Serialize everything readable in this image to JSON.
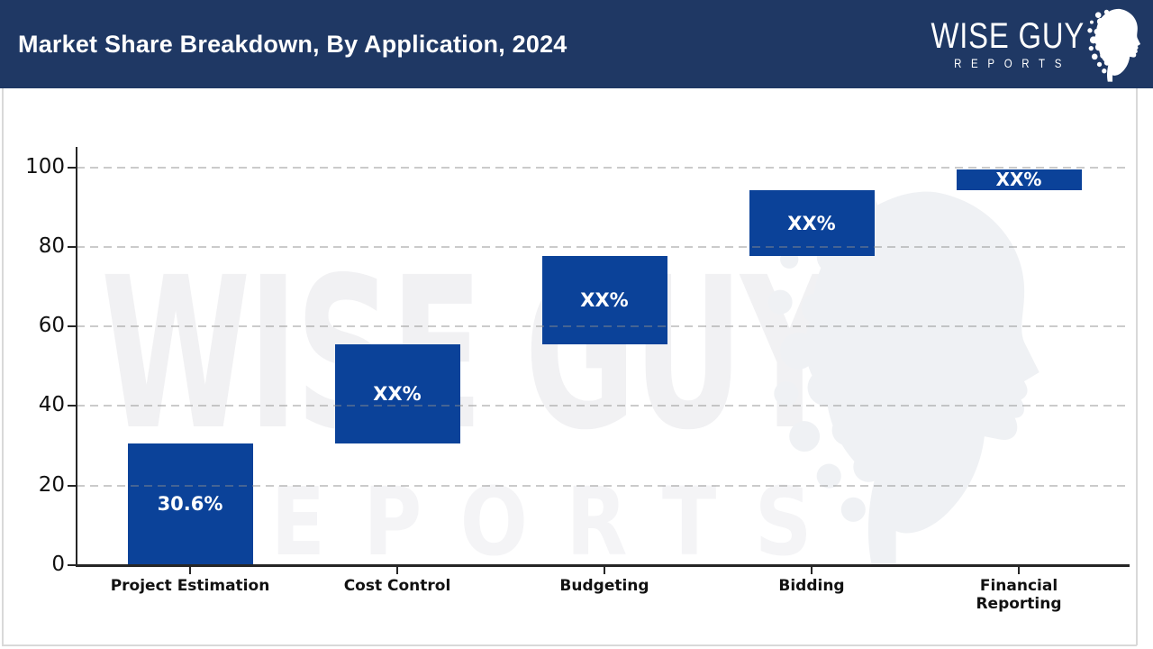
{
  "header": {
    "title": "Market Share Breakdown, By Application, 2024",
    "logo": {
      "line1": "WISE GUY",
      "line2": "REPORTS"
    }
  },
  "watermark": {
    "line1": "WISE GUY",
    "line2": "REPORTS"
  },
  "colors": {
    "header_bg": "#1f3864",
    "bar": "#0b4299",
    "bar_label": "#ffffff",
    "axis": "#262626",
    "gridline": "#d8d8d8",
    "panel_border": "#d9d9d9",
    "watermark": "#f1f1f3"
  },
  "chart_data": {
    "type": "bar",
    "subtype": "waterfall",
    "title": "Market Share Breakdown, By Application, 2024",
    "unit": "percent",
    "categories": [
      "Project Estimation",
      "Cost Control",
      "Budgeting",
      "Bidding",
      "Financial\nReporting"
    ],
    "series": [
      {
        "name": "Market Share",
        "segments": [
          {
            "category": "Project Estimation",
            "start": 0,
            "end": 30.6,
            "label": "30.6%"
          },
          {
            "category": "Cost Control",
            "start": 30.6,
            "end": 55.6,
            "label": "XX%"
          },
          {
            "category": "Budgeting",
            "start": 55.6,
            "end": 77.6,
            "label": "XX%"
          },
          {
            "category": "Bidding",
            "start": 77.6,
            "end": 94.3,
            "label": "XX%"
          },
          {
            "category": "Financial Reporting",
            "start": 94.3,
            "end": 99.5,
            "label": "XX%"
          }
        ]
      }
    ],
    "ylim": [
      0,
      105
    ],
    "yticks": [
      0,
      20,
      40,
      60,
      80,
      100
    ],
    "grid": "horizontal-dashed",
    "legend_position": "none"
  }
}
